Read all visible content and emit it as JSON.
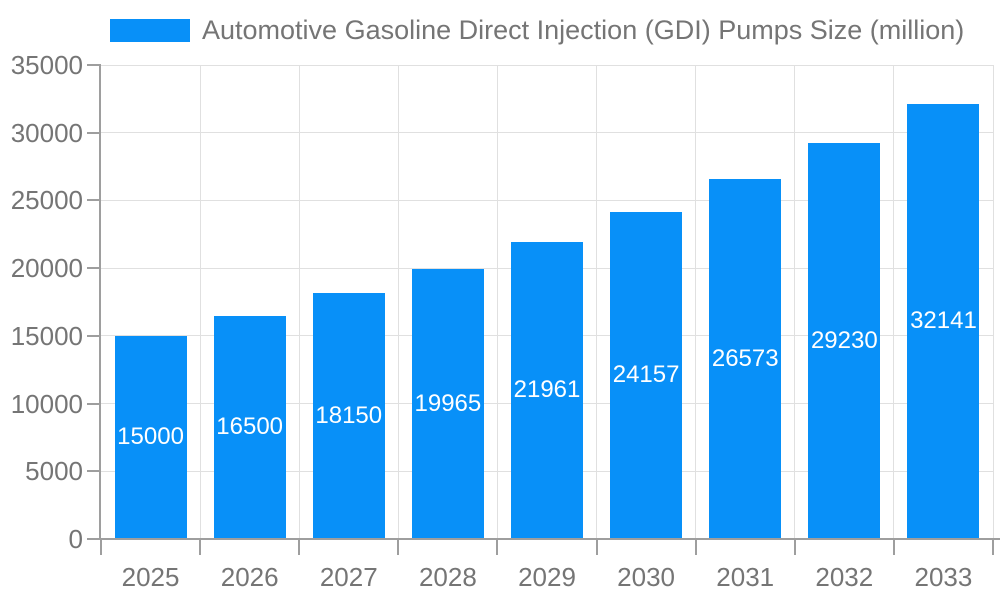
{
  "chart_data": {
    "type": "bar",
    "title": "Automotive Gasoline Direct Injection (GDI) Pumps Size (million)",
    "series_name": "Automotive Gasoline Direct Injection (GDI) Pumps Size (million)",
    "categories": [
      "2025",
      "2026",
      "2027",
      "2028",
      "2029",
      "2030",
      "2031",
      "2032",
      "2033"
    ],
    "values": [
      15000,
      16500,
      18150,
      19965,
      21961,
      24157,
      26573,
      29230,
      32141
    ],
    "xlabel": "",
    "ylabel": "",
    "ylim": [
      0,
      35000
    ],
    "ytick_step": 5000,
    "yticks": [
      0,
      5000,
      10000,
      15000,
      20000,
      25000,
      30000,
      35000
    ],
    "grid": true,
    "legend_position": "top",
    "data_label_position": "inside-center",
    "colors": {
      "bar": "#0890f8",
      "data_label": "#ffffff",
      "axis_text": "#757575",
      "title_text": "#757575",
      "gridline": "#e0e0e0",
      "axis_line": "#9e9e9e",
      "background": "#ffffff"
    }
  }
}
